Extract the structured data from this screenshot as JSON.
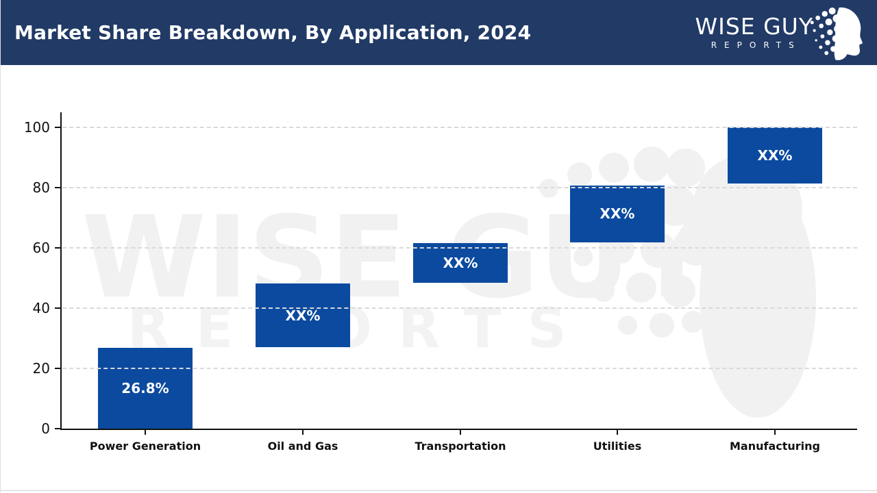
{
  "header": {
    "title": "Market Share Breakdown, By Application, 2024",
    "logo": {
      "line1": "WISE GUY",
      "line2": "REPORTS"
    }
  },
  "watermark": {
    "line1": "WISE GUY",
    "line2": "REPORTS"
  },
  "colors": {
    "header_bg": "#213a66",
    "bar": "#0b4a9f",
    "bar_label": "#ffffff",
    "grid": "#d9d9d9",
    "axis": "#111111",
    "watermark": "#f1f1f1"
  },
  "chart_data": {
    "type": "bar",
    "subtype": "waterfall",
    "title": "Market Share Breakdown, By Application, 2024",
    "xlabel": "",
    "ylabel": "",
    "ylim": [
      0,
      105
    ],
    "yticks": [
      0,
      20,
      40,
      60,
      80,
      100
    ],
    "grid": "horizontal-dashed",
    "legend": "none",
    "categories": [
      "Power Generation",
      "Oil and Gas",
      "Transportation",
      "Utilities",
      "Manufacturing"
    ],
    "segments": [
      {
        "category": "Power Generation",
        "start": 0,
        "end": 26.8,
        "label": "26.8%"
      },
      {
        "category": "Oil and Gas",
        "start": 27.0,
        "end": 48.2,
        "label": "XX%"
      },
      {
        "category": "Transportation",
        "start": 48.4,
        "end": 61.5,
        "label": "XX%"
      },
      {
        "category": "Utilities",
        "start": 61.9,
        "end": 80.7,
        "label": "XX%"
      },
      {
        "category": "Manufacturing",
        "start": 81.3,
        "end": 100,
        "label": "XX%"
      }
    ]
  }
}
